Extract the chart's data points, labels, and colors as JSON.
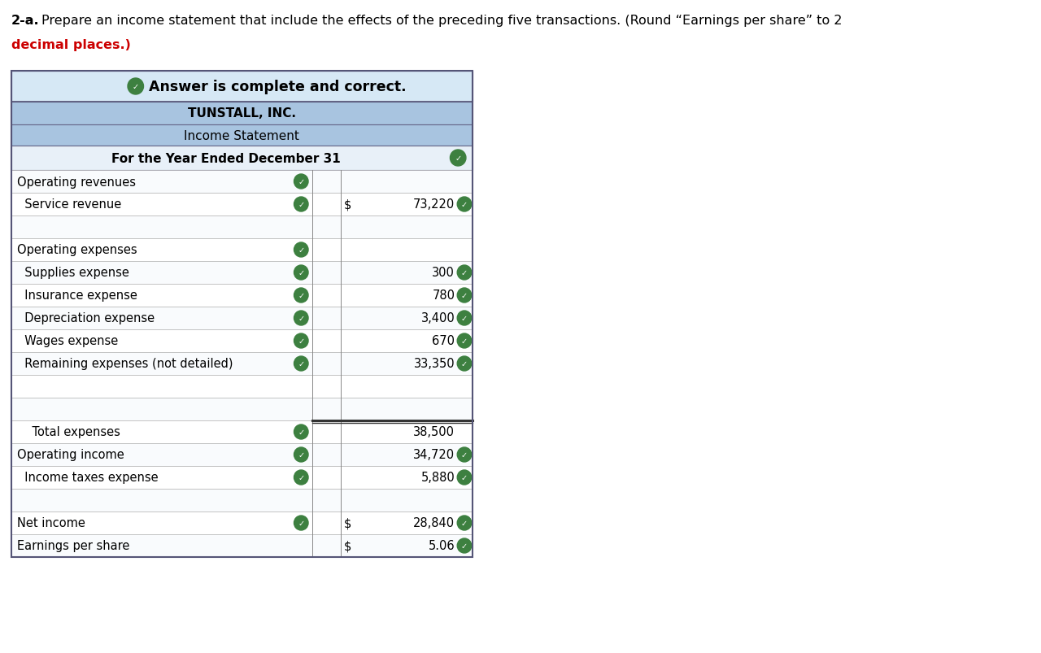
{
  "answer_banner": "Answer is complete and correct.",
  "company": "TUNSTALL, INC.",
  "statement": "Income Statement",
  "period": "For the Year Ended December 31",
  "rows": [
    {
      "label": "Operating revenues",
      "indent": 0,
      "col1": "",
      "col2": "",
      "check1": true,
      "check2": false
    },
    {
      "label": "  Service revenue",
      "indent": 1,
      "col1": "$",
      "col2": "73,220",
      "check1": true,
      "check2": true
    },
    {
      "label": "",
      "indent": 0,
      "col1": "",
      "col2": "",
      "check1": false,
      "check2": false
    },
    {
      "label": "Operating expenses",
      "indent": 0,
      "col1": "",
      "col2": "",
      "check1": true,
      "check2": false
    },
    {
      "label": "  Supplies expense",
      "indent": 1,
      "col1": "",
      "col2": "300",
      "check1": true,
      "check2": true
    },
    {
      "label": "  Insurance expense",
      "indent": 1,
      "col1": "",
      "col2": "780",
      "check1": true,
      "check2": true
    },
    {
      "label": "  Depreciation expense",
      "indent": 1,
      "col1": "",
      "col2": "3,400",
      "check1": true,
      "check2": true
    },
    {
      "label": "  Wages expense",
      "indent": 1,
      "col1": "",
      "col2": "670",
      "check1": true,
      "check2": true
    },
    {
      "label": "  Remaining expenses (not detailed)",
      "indent": 1,
      "col1": "",
      "col2": "33,350",
      "check1": true,
      "check2": true
    },
    {
      "label": "",
      "indent": 0,
      "col1": "",
      "col2": "",
      "check1": false,
      "check2": false
    },
    {
      "label": "",
      "indent": 0,
      "col1": "",
      "col2": "",
      "check1": false,
      "check2": false
    },
    {
      "label": "    Total expenses",
      "indent": 2,
      "col1": "",
      "col2": "38,500",
      "check1": true,
      "check2": false,
      "double_top": true
    },
    {
      "label": "Operating income",
      "indent": 0,
      "col1": "",
      "col2": "34,720",
      "check1": true,
      "check2": true
    },
    {
      "label": "  Income taxes expense",
      "indent": 1,
      "col1": "",
      "col2": "5,880",
      "check1": true,
      "check2": true
    },
    {
      "label": "",
      "indent": 0,
      "col1": "",
      "col2": "",
      "check1": false,
      "check2": false
    },
    {
      "label": "Net income",
      "indent": 0,
      "col1": "$",
      "col2": "28,840",
      "check1": true,
      "check2": true
    },
    {
      "label": "Earnings per share",
      "indent": 0,
      "col1": "$",
      "col2": "5.06",
      "check1": false,
      "check2": true
    }
  ],
  "bg_header": "#a8c4e0",
  "bg_answer": "#d6e8f5",
  "bg_white": "#ffffff",
  "bg_period": "#e8f0f8",
  "check_green": "#3d8040",
  "border_color": "#888888",
  "text_black": "#000000",
  "text_red": "#cc0000"
}
